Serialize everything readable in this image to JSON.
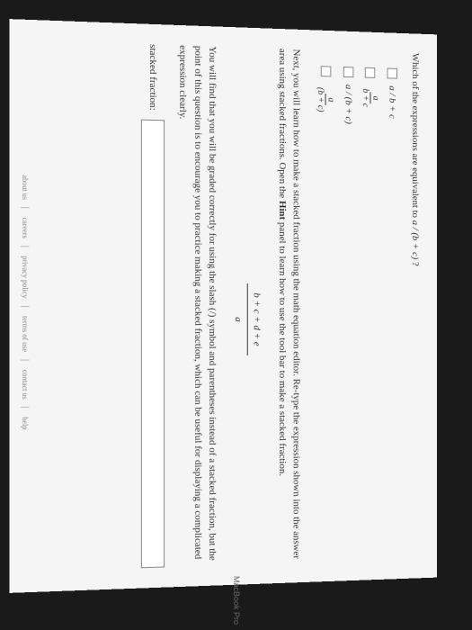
{
  "question": {
    "prompt_prefix": "Which of the expressions are equivalent to ",
    "prompt_expr": "a / (b + c)",
    "prompt_suffix": "?"
  },
  "options": {
    "opt1": "a / b + c",
    "opt2_num": "a",
    "opt2_den": "b + c",
    "opt3": "a / (b + c)",
    "opt4_num": "a",
    "opt4_den": "(b + c)"
  },
  "para1": {
    "text_a": "Next, you will learn how to make a stacked fraction using the math equation editor. Re-type the expression shown into the answer area using stacked fractions. Open the ",
    "hint": "Hint",
    "text_b": " panel to learn how to use the tool bar to make a stacked fraction."
  },
  "bigfrac": {
    "top": "b + c + d + e",
    "bot": "a"
  },
  "para2": "You will find that you will be graded correctly for using the slash (/) symbol and parentheses instead of a stacked fraction, but the point of this question is to encourage you to practice making a stacked fraction, which can be useful for displaying a complicated expression clearly.",
  "answer_label": "stacked fraction:",
  "footer": {
    "l1": "about us",
    "l2": "careers",
    "l3": "privacy policy",
    "l4": "terms of use",
    "l5": "contact us",
    "l6": "help"
  },
  "device": "MacBook Pro"
}
